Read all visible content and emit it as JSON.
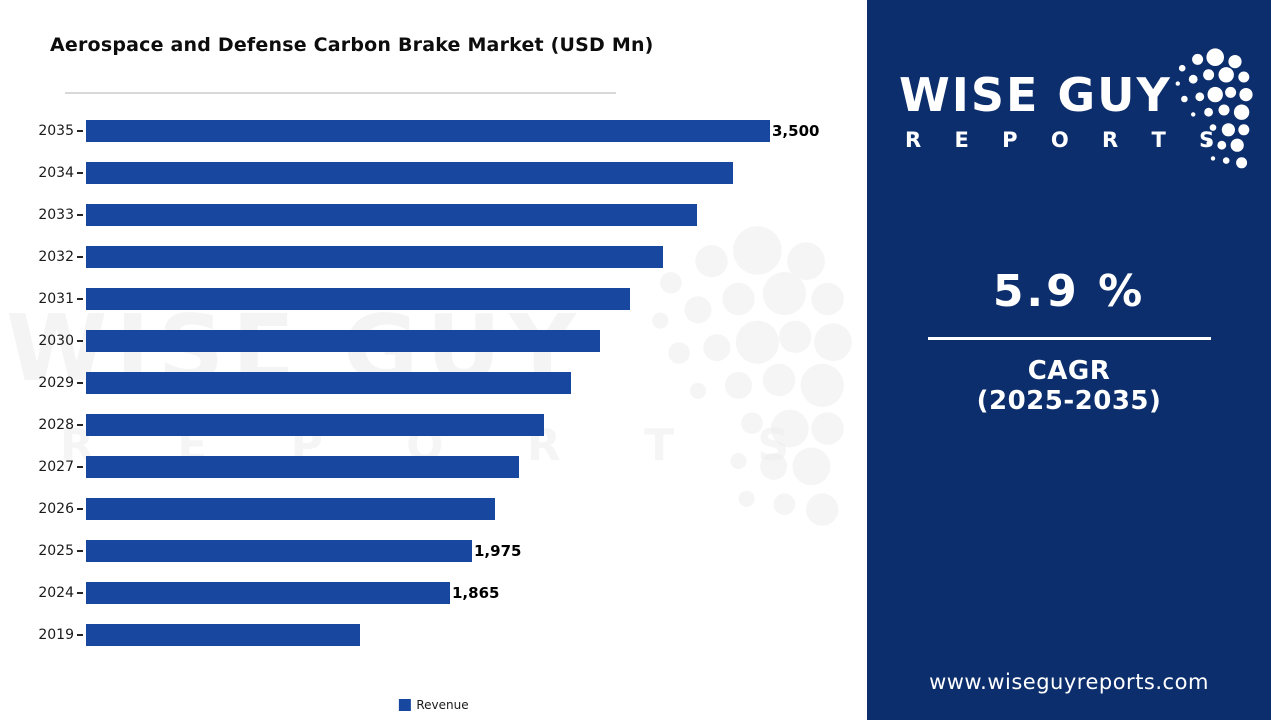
{
  "chart_data": {
    "type": "bar",
    "orientation": "horizontal",
    "title": "Aerospace and Defense Carbon Brake Market (USD Mn)",
    "xlabel": "",
    "ylabel": "",
    "xlim": [
      0,
      3500
    ],
    "grid": false,
    "legend_position": "bottom",
    "legend_label": "Revenue",
    "bar_color": "#17479e",
    "categories": [
      "2035",
      "2034",
      "2033",
      "2032",
      "2031",
      "2030",
      "2029",
      "2028",
      "2027",
      "2026",
      "2025",
      "2024",
      "2019"
    ],
    "values": [
      3500,
      3309,
      3124,
      2950,
      2786,
      2631,
      2484,
      2346,
      2215,
      2092,
      1975,
      1865,
      1400
    ],
    "data_labels": {
      "2035": "3,500",
      "2025": "1,975",
      "2024": "1,865"
    }
  },
  "watermark": {
    "line1": "WISE GUY",
    "line2": "R E P O R T S"
  },
  "sidebar": {
    "background": "#0d2e6c",
    "logo_line1": "WISE GUY",
    "logo_line2": "R E P O R T S",
    "cagr_value": "5.9 %",
    "cagr_label": "CAGR",
    "cagr_range": "(2025-2035)",
    "website": "www.wiseguyreports.com"
  }
}
